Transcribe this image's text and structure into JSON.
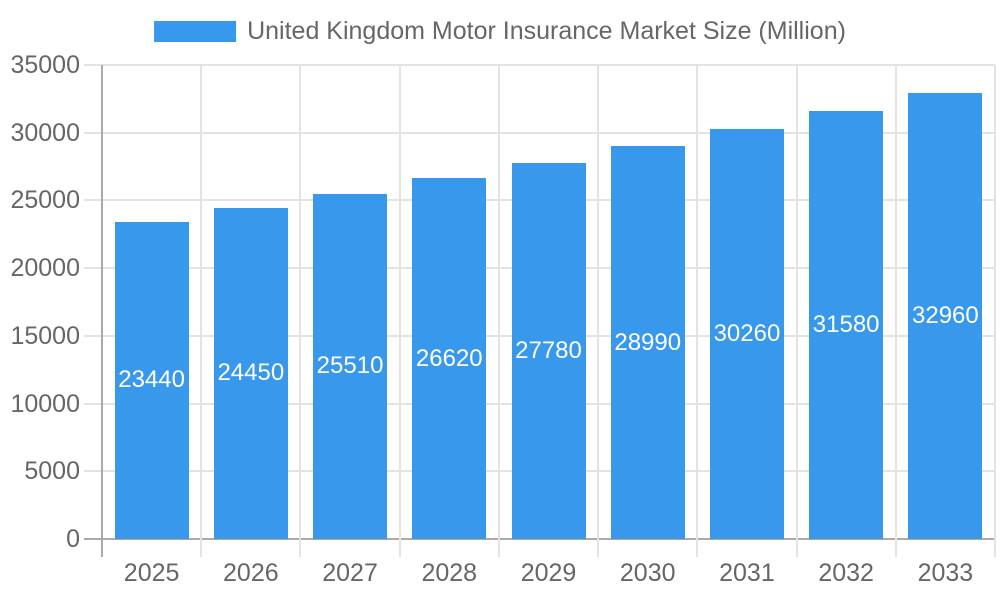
{
  "chart_data": {
    "type": "bar",
    "title": "United Kingdom Motor Insurance Market Size (Million)",
    "legend": {
      "position": "top",
      "label": "United Kingdom Motor Insurance Market Size (Million)"
    },
    "categories": [
      "2025",
      "2026",
      "2027",
      "2028",
      "2029",
      "2030",
      "2031",
      "2032",
      "2033"
    ],
    "series": [
      {
        "name": "United Kingdom Motor Insurance Market Size (Million)",
        "values": [
          23440,
          24450,
          25510,
          26620,
          27780,
          28990,
          30260,
          31580,
          32960
        ]
      }
    ],
    "value_labels_inside_bars": true,
    "xlabel": "",
    "ylabel": "",
    "ylim": [
      0,
      35000
    ],
    "yticks": [
      0,
      5000,
      10000,
      15000,
      20000,
      25000,
      30000,
      35000
    ],
    "grid": true,
    "colors": {
      "bar": "#3898EC",
      "bar_label": "#FFFFFF",
      "axis_text": "#666666",
      "grid_line": "#E3E3E3",
      "axis_line": "#AAAAAA",
      "background": "#FFFFFF"
    }
  }
}
